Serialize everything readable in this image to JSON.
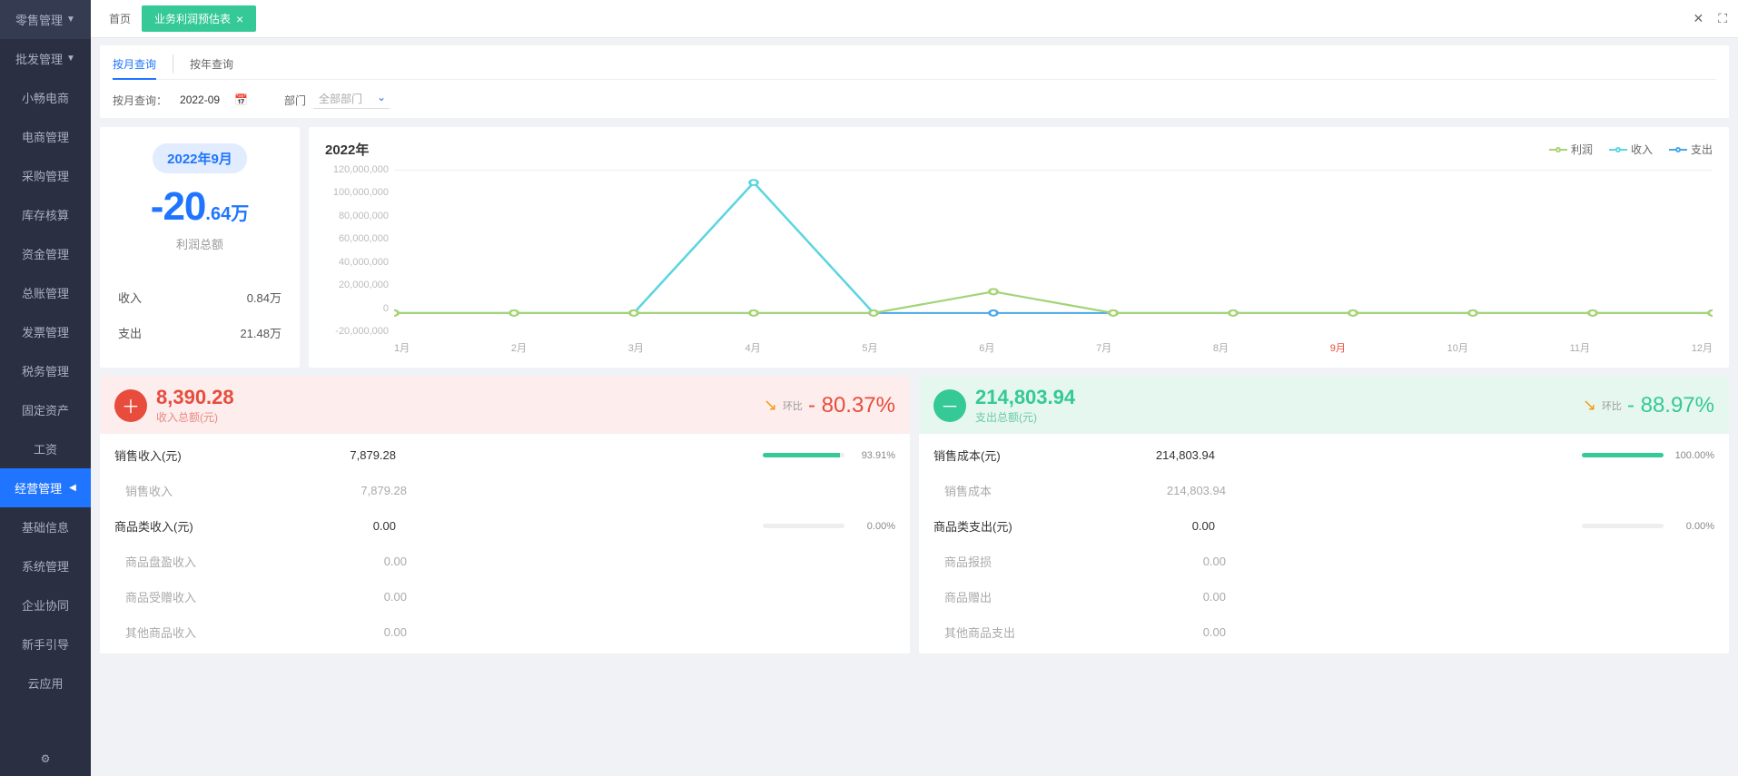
{
  "sidebar": {
    "items": [
      {
        "label": "零售管理",
        "hasCaret": true
      },
      {
        "label": "批发管理",
        "hasCaret": true
      },
      {
        "label": "小畅电商"
      },
      {
        "label": "电商管理"
      },
      {
        "label": "采购管理"
      },
      {
        "label": "库存核算"
      },
      {
        "label": "资金管理"
      },
      {
        "label": "总账管理"
      },
      {
        "label": "发票管理"
      },
      {
        "label": "税务管理"
      },
      {
        "label": "固定资产"
      },
      {
        "label": "工资"
      },
      {
        "label": "经营管理",
        "active": true
      },
      {
        "label": "基础信息"
      },
      {
        "label": "系统管理"
      },
      {
        "label": "企业协同"
      },
      {
        "label": "新手引导"
      },
      {
        "label": "云应用"
      }
    ]
  },
  "tabs": {
    "home": "首页",
    "active": "业务利润预估表"
  },
  "query": {
    "byMonth": "按月查询",
    "byYear": "按年查询",
    "monthLabel": "按月查询：",
    "monthValue": "2022-09",
    "deptLabel": "部门",
    "deptValue": "全部部门"
  },
  "kpi": {
    "period": "2022年9月",
    "profitInt": "-20",
    "profitDec": ".64万",
    "profitLabel": "利润总额",
    "rows": [
      {
        "label": "收入",
        "value": "0.84万"
      },
      {
        "label": "支出",
        "value": "21.48万"
      }
    ]
  },
  "chart": {
    "title": "2022年",
    "legend": [
      {
        "label": "利润",
        "color": "#a8d46f"
      },
      {
        "label": "收入",
        "color": "#5bd5e0"
      },
      {
        "label": "支出",
        "color": "#4aa8e8"
      }
    ],
    "yticks": [
      "120,000,000",
      "100,000,000",
      "80,000,000",
      "60,000,000",
      "40,000,000",
      "20,000,000",
      "0",
      "-20,000,000"
    ],
    "xticks": [
      "1月",
      "2月",
      "3月",
      "4月",
      "5月",
      "6月",
      "7月",
      "8月",
      "9月",
      "10月",
      "11月",
      "12月"
    ],
    "highlightIdx": 8,
    "ymin": -20000000,
    "ymax": 120000000,
    "series": {
      "profit": [
        0,
        0,
        0,
        0,
        0,
        18000000,
        0,
        0,
        0,
        0,
        0,
        0
      ],
      "income": [
        0,
        0,
        0,
        110000000,
        0,
        18000000,
        0,
        0,
        0,
        0,
        0,
        0
      ],
      "expense": [
        0,
        0,
        0,
        0,
        0,
        0,
        0,
        0,
        0,
        0,
        0,
        0
      ]
    }
  },
  "incomeCard": {
    "total": "8,390.28",
    "totalLabel": "收入总额(元)",
    "hb": "环比",
    "pct": "- 80.37%",
    "rows": [
      {
        "label": "销售收入(元)",
        "value": "7,879.28",
        "pct": "93.91%",
        "pctNum": 93.91,
        "main": true
      },
      {
        "label": "销售收入",
        "value": "7,879.28",
        "main": false
      },
      {
        "label": "商品类收入(元)",
        "value": "0.00",
        "pct": "0.00%",
        "pctNum": 0,
        "main": true
      },
      {
        "label": "商品盘盈收入",
        "value": "0.00",
        "main": false
      },
      {
        "label": "商品受赠收入",
        "value": "0.00",
        "main": false
      },
      {
        "label": "其他商品收入",
        "value": "0.00",
        "main": false
      }
    ]
  },
  "expenseCard": {
    "total": "214,803.94",
    "totalLabel": "支出总额(元)",
    "hb": "环比",
    "pct": "- 88.97%",
    "rows": [
      {
        "label": "销售成本(元)",
        "value": "214,803.94",
        "pct": "100.00%",
        "pctNum": 100,
        "main": true
      },
      {
        "label": "销售成本",
        "value": "214,803.94",
        "main": false
      },
      {
        "label": "商品类支出(元)",
        "value": "0.00",
        "pct": "0.00%",
        "pctNum": 0,
        "main": true
      },
      {
        "label": "商品报损",
        "value": "0.00",
        "main": false
      },
      {
        "label": "商品赠出",
        "value": "0.00",
        "main": false
      },
      {
        "label": "其他商品支出",
        "value": "0.00",
        "main": false
      }
    ]
  }
}
